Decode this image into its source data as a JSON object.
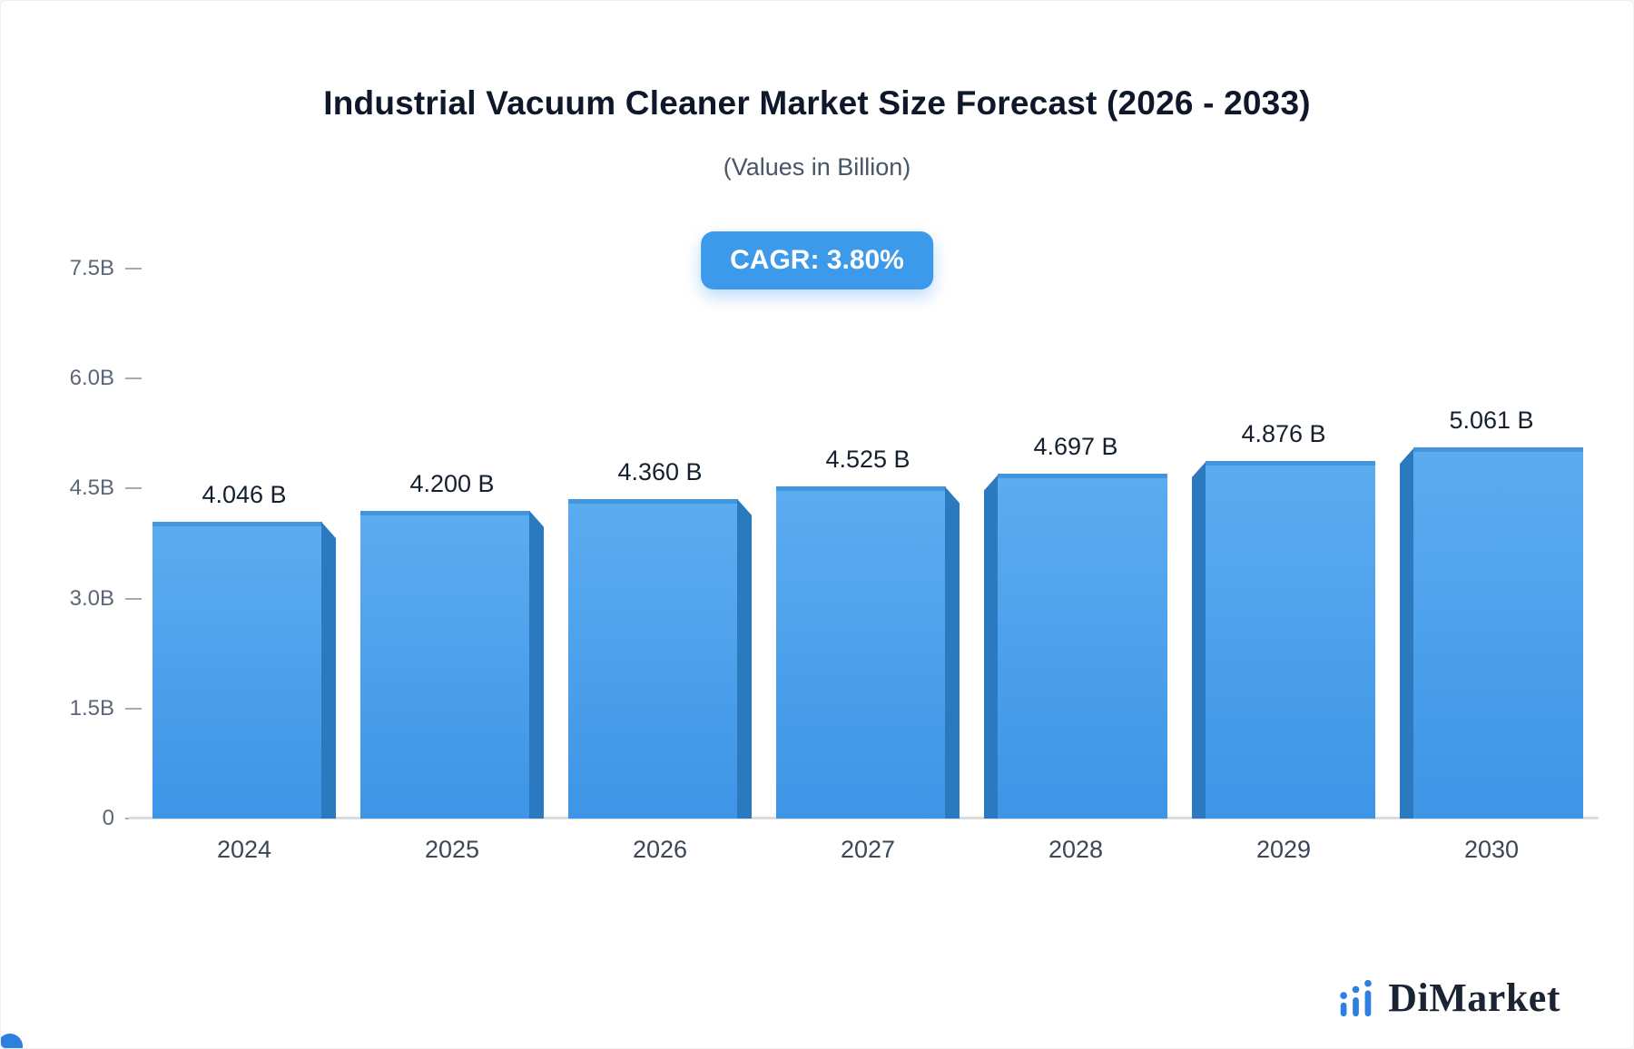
{
  "header": {
    "title": "Industrial Vacuum Cleaner Market Size Forecast (2026 - 2033)",
    "subtitle": "(Values in Billion)",
    "cagr_label": "CAGR: 3.80%"
  },
  "chart_data": {
    "type": "bar",
    "title": "Industrial Vacuum Cleaner Market Size Forecast (2026 - 2033)",
    "subtitle": "(Values in Billion)",
    "unit": "Billion",
    "cagr_percent": 3.8,
    "categories": [
      "2024",
      "2025",
      "2026",
      "2027",
      "2028",
      "2029",
      "2030"
    ],
    "values": [
      4.046,
      4.2,
      4.36,
      4.525,
      4.697,
      4.876,
      5.061
    ],
    "value_labels": [
      "4.046 B",
      "4.200 B",
      "4.360 B",
      "4.525 B",
      "4.697 B",
      "4.876 B",
      "5.061 B"
    ],
    "xlabel": "",
    "ylabel": "",
    "ylim": [
      0,
      7.5
    ],
    "yticks": [
      "7.5B",
      "6.0B",
      "4.5B",
      "3.0B",
      "1.5B",
      "0"
    ],
    "ytick_values": [
      7.5,
      6.0,
      4.5,
      3.0,
      1.5,
      0
    ],
    "grid": false,
    "legend": false,
    "bar_face_color_top": "#5CACF0",
    "bar_face_color_bottom": "#3E95E6",
    "bar_side_color": "#2B7AC0",
    "badge_color": "#3D99EA"
  },
  "branding": {
    "logo_text": "DiMarket",
    "logo_icon": "bar-chart-logo-icon",
    "logo_color": "#2D7FE0"
  }
}
